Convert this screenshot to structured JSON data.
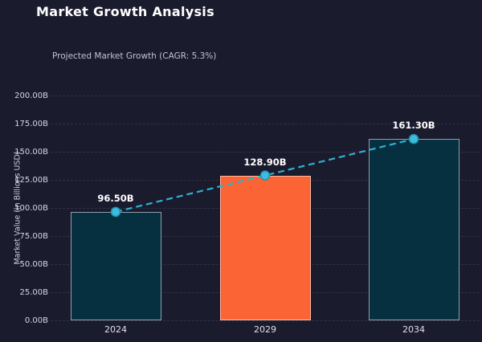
{
  "chart_data": {
    "type": "bar",
    "title": "Market Growth Analysis",
    "subtitle": "Projected Market Growth (CAGR: 5.3%)",
    "xlabel": "",
    "ylabel": "Market Value (in Billions USD)",
    "categories": [
      "2024",
      "2029",
      "2034"
    ],
    "values": [
      96.5,
      128.9,
      161.3
    ],
    "value_labels": [
      "96.50B",
      "128.90B",
      "161.30B"
    ],
    "ylim": [
      0,
      200
    ],
    "ytick_step": 25,
    "ytick_labels": [
      "0.00B",
      "25.00B",
      "50.00B",
      "75.00B",
      "100.00B",
      "125.00B",
      "150.00B",
      "175.00B",
      "200.00B"
    ],
    "grid": true,
    "legend_position": "none",
    "trend_line": {
      "style": "dashed",
      "x": [
        "2024",
        "2029",
        "2034"
      ],
      "values": [
        96.5,
        128.9,
        161.3
      ]
    },
    "colors": {
      "background": "#1b1b2e",
      "bar_colors": [
        "#063040",
        "#fb6434",
        "#063040"
      ],
      "bar_border": "rgba(255,255,255,0.55)",
      "trend_line": "#2fb0d0",
      "marker_fill": "#3dbcdb",
      "marker_stroke": "#1f93b4",
      "title_text": "#ffffff",
      "subtitle_text": "#c2c2d2",
      "tick_text": "#d6d6e0"
    }
  }
}
